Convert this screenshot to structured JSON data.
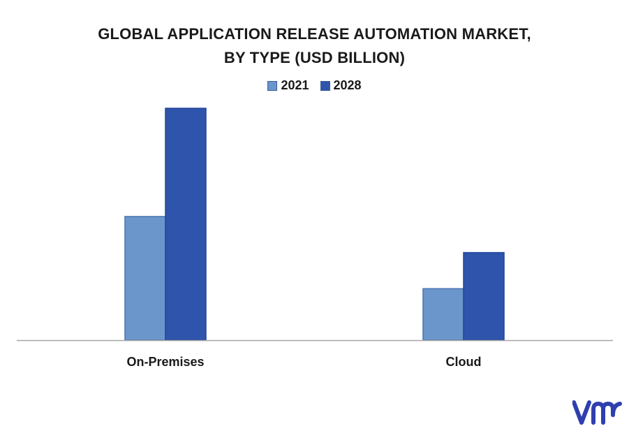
{
  "title_lines": [
    "GLOBAL APPLICATION RELEASE AUTOMATION MARKET,",
    "BY TYPE (USD BILLION)"
  ],
  "chart_data": {
    "type": "bar",
    "categories": [
      "On-Premises",
      "Cloud"
    ],
    "series": [
      {
        "name": "2021",
        "values": [
          2.4,
          1.0
        ],
        "color": "#6b96cb"
      },
      {
        "name": "2028",
        "values": [
          4.5,
          1.7
        ],
        "color": "#2f54ac"
      }
    ],
    "ylim": [
      0,
      4.5
    ],
    "grid": false,
    "legend": "top-center",
    "xlabel": "",
    "ylabel": ""
  },
  "logo": {
    "name": "vmr-logo",
    "color": "#2f3fb0"
  }
}
